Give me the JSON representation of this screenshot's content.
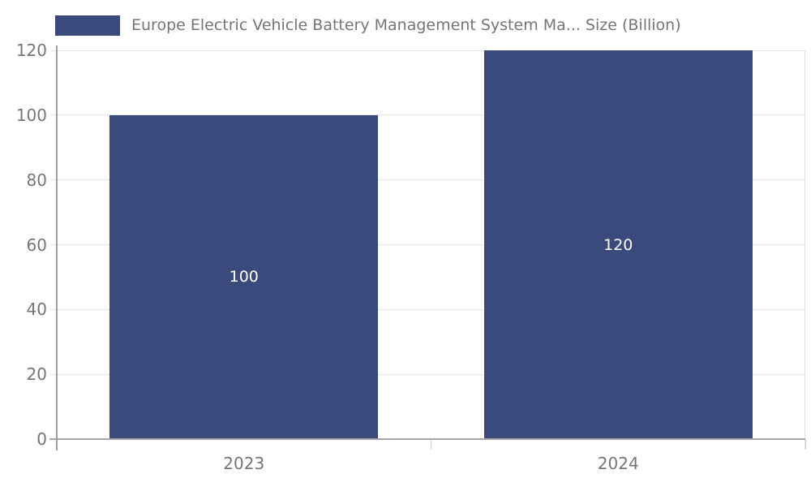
{
  "chart_data": {
    "type": "bar",
    "legend": "Europe Electric Vehicle Battery Management System Ma... Size (Billion)",
    "categories": [
      "2023",
      "2024"
    ],
    "series": [
      {
        "name": "Europe Electric Vehicle Battery Management System Ma... Size (Billion)",
        "values": [
          100,
          120
        ]
      }
    ],
    "value_labels": [
      "100",
      "120"
    ],
    "ylim": [
      0,
      120
    ],
    "yticks": [
      0,
      20,
      40,
      60,
      80,
      100,
      120
    ],
    "grid": true,
    "legend_position": "top-left",
    "colors": {
      "bar": "#3a4a7d",
      "grid": "#e6e6e6",
      "axis": "#a5a5a5",
      "tick_label": "#757575",
      "value_label": "#ffffff",
      "background": "#ffffff"
    }
  }
}
